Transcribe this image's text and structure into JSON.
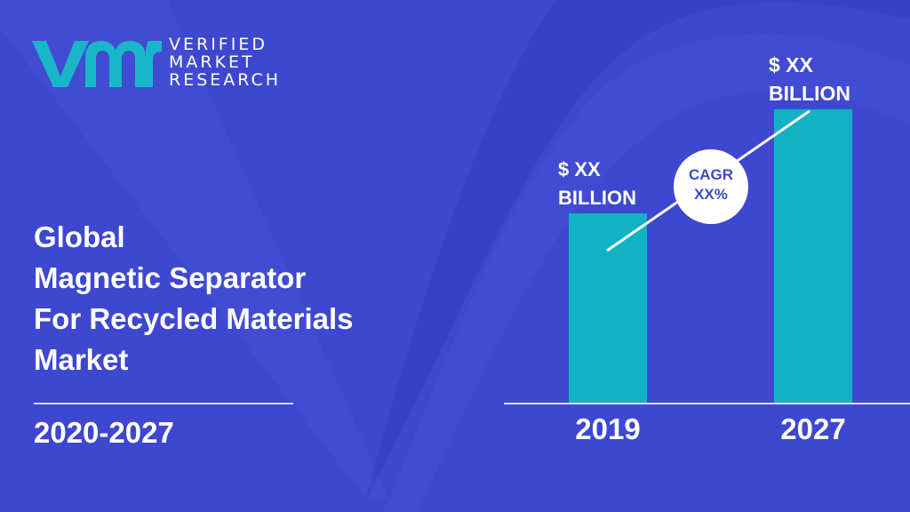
{
  "brand": {
    "line1": "VERIFIED",
    "line2": "MARKET",
    "line3": "RESEARCH",
    "logo_color": "#19b6c7"
  },
  "title_lines": [
    "Global",
    "Magnetic Separator",
    "For Recycled Materials",
    "Market"
  ],
  "period": "2020-2027",
  "colors": {
    "background": "#3d47cf",
    "bar": "#13b1c4",
    "text": "#ffffff",
    "cagr_text": "#3d47cf"
  },
  "chart_data": {
    "type": "bar",
    "categories": [
      "2019",
      "2027"
    ],
    "values": [
      1,
      1.55
    ],
    "value_labels": [
      [
        "$ XX",
        "BILLION"
      ],
      [
        "$ XX",
        "BILLION"
      ]
    ],
    "annotation": [
      "CAGR",
      "XX%"
    ],
    "trend_line": true,
    "grid": false
  }
}
